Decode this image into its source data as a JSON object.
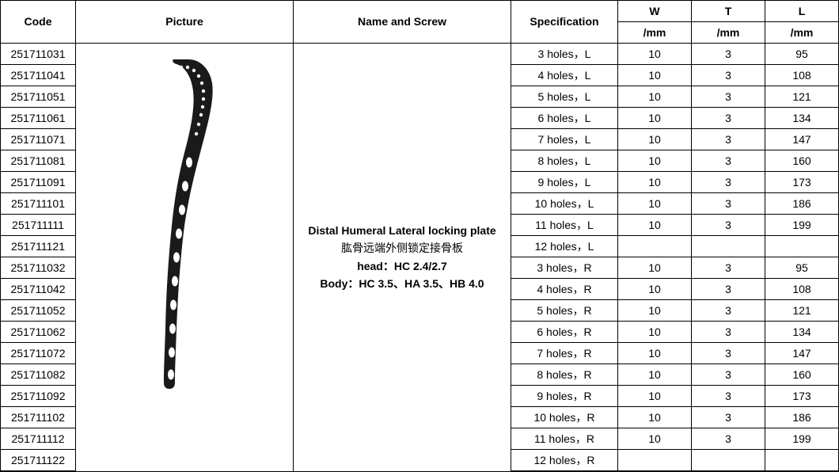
{
  "headers": {
    "code": "Code",
    "picture": "Picture",
    "name_screw": "Name and Screw",
    "spec": "Specification",
    "w1": "W",
    "w2": "/mm",
    "t1": "T",
    "t2": "/mm",
    "l1": "L",
    "l2": "/mm"
  },
  "name_block": {
    "line1": "Distal Humeral Lateral locking plate",
    "line2": "肱骨远端外侧锁定接骨板",
    "line3": "head：HC 2.4/2.7",
    "line4": "Body：HC 3.5、HA 3.5、HB 4.0"
  },
  "rows": [
    {
      "code": "251711031",
      "spec": "3 holes，L",
      "w": "10",
      "t": "3",
      "l": "95"
    },
    {
      "code": "251711041",
      "spec": "4 holes，L",
      "w": "10",
      "t": "3",
      "l": "108"
    },
    {
      "code": "251711051",
      "spec": "5 holes，L",
      "w": "10",
      "t": "3",
      "l": "121"
    },
    {
      "code": "251711061",
      "spec": "6 holes，L",
      "w": "10",
      "t": "3",
      "l": "134"
    },
    {
      "code": "251711071",
      "spec": "7 holes，L",
      "w": "10",
      "t": "3",
      "l": "147"
    },
    {
      "code": "251711081",
      "spec": "8 holes，L",
      "w": "10",
      "t": "3",
      "l": "160"
    },
    {
      "code": "251711091",
      "spec": "9 holes，L",
      "w": "10",
      "t": "3",
      "l": "173"
    },
    {
      "code": "251711101",
      "spec": "10 holes，L",
      "w": "10",
      "t": "3",
      "l": "186"
    },
    {
      "code": "251711111",
      "spec": "11 holes，L",
      "w": "10",
      "t": "3",
      "l": "199"
    },
    {
      "code": "251711121",
      "spec": "12 holes，L",
      "w": "",
      "t": "",
      "l": ""
    },
    {
      "code": "251711032",
      "spec": "3 holes，R",
      "w": "10",
      "t": "3",
      "l": "95"
    },
    {
      "code": "251711042",
      "spec": "4 holes，R",
      "w": "10",
      "t": "3",
      "l": "108"
    },
    {
      "code": "251711052",
      "spec": "5 holes，R",
      "w": "10",
      "t": "3",
      "l": "121"
    },
    {
      "code": "251711062",
      "spec": "6 holes，R",
      "w": "10",
      "t": "3",
      "l": "134"
    },
    {
      "code": "251711072",
      "spec": "7 holes，R",
      "w": "10",
      "t": "3",
      "l": "147"
    },
    {
      "code": "251711082",
      "spec": "8 holes，R",
      "w": "10",
      "t": "3",
      "l": "160"
    },
    {
      "code": "251711092",
      "spec": "9 holes，R",
      "w": "10",
      "t": "3",
      "l": "173"
    },
    {
      "code": "251711102",
      "spec": "10 holes，R",
      "w": "10",
      "t": "3",
      "l": "186"
    },
    {
      "code": "251711112",
      "spec": "11 holes，R",
      "w": "10",
      "t": "3",
      "l": "199"
    },
    {
      "code": "251711122",
      "spec": "12 holes，R",
      "w": "",
      "t": "",
      "l": ""
    }
  ],
  "style": {
    "border_color": "#000000",
    "bg_color": "#ffffff",
    "font_size": 14,
    "header_font_weight": "bold"
  }
}
